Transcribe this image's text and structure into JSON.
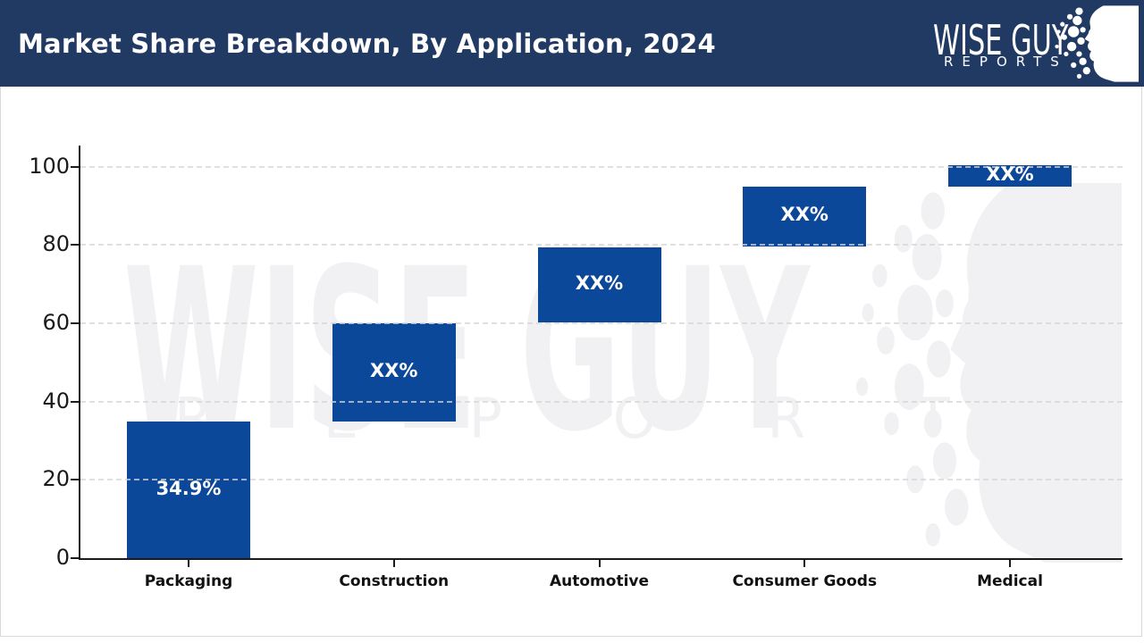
{
  "header": {
    "title": "Market Share Breakdown, By Application, 2024",
    "bg_color": "#213a64",
    "logo": {
      "line1": "WISE GUY",
      "line2": "REPORTS"
    }
  },
  "chart_data": {
    "type": "bar",
    "subtype": "waterfall",
    "title": "Market Share Breakdown, By Application, 2024",
    "categories": [
      "Packaging",
      "Construction",
      "Automotive",
      "Consumer Goods",
      "Medical"
    ],
    "segments": [
      {
        "category": "Packaging",
        "start": 0,
        "end": 34.9,
        "label": "34.9%"
      },
      {
        "category": "Construction",
        "start": 34.9,
        "end": 60.1,
        "label": "XX%"
      },
      {
        "category": "Automotive",
        "start": 60.3,
        "end": 79.4,
        "label": "XX%"
      },
      {
        "category": "Consumer Goods",
        "start": 79.7,
        "end": 94.9,
        "label": "XX%"
      },
      {
        "category": "Medical",
        "start": 95.0,
        "end": 100.3,
        "label": "XX%"
      }
    ],
    "yticks": [
      0,
      20,
      40,
      60,
      80,
      100
    ],
    "ylim": [
      0,
      107
    ],
    "xlabel": "",
    "ylabel": "",
    "legend": null,
    "grid": {
      "axis": "y",
      "style": "dashed",
      "color": "#d5d5d5"
    },
    "bar_color": "#0b4899",
    "bar_label_color": "#ffffff",
    "axis_color": "#1a1a1a",
    "watermark": {
      "line1": "WISE GUY",
      "line2": "R E P O R T S"
    }
  },
  "footer": {
    "rule_color": "#d9d9d9"
  }
}
